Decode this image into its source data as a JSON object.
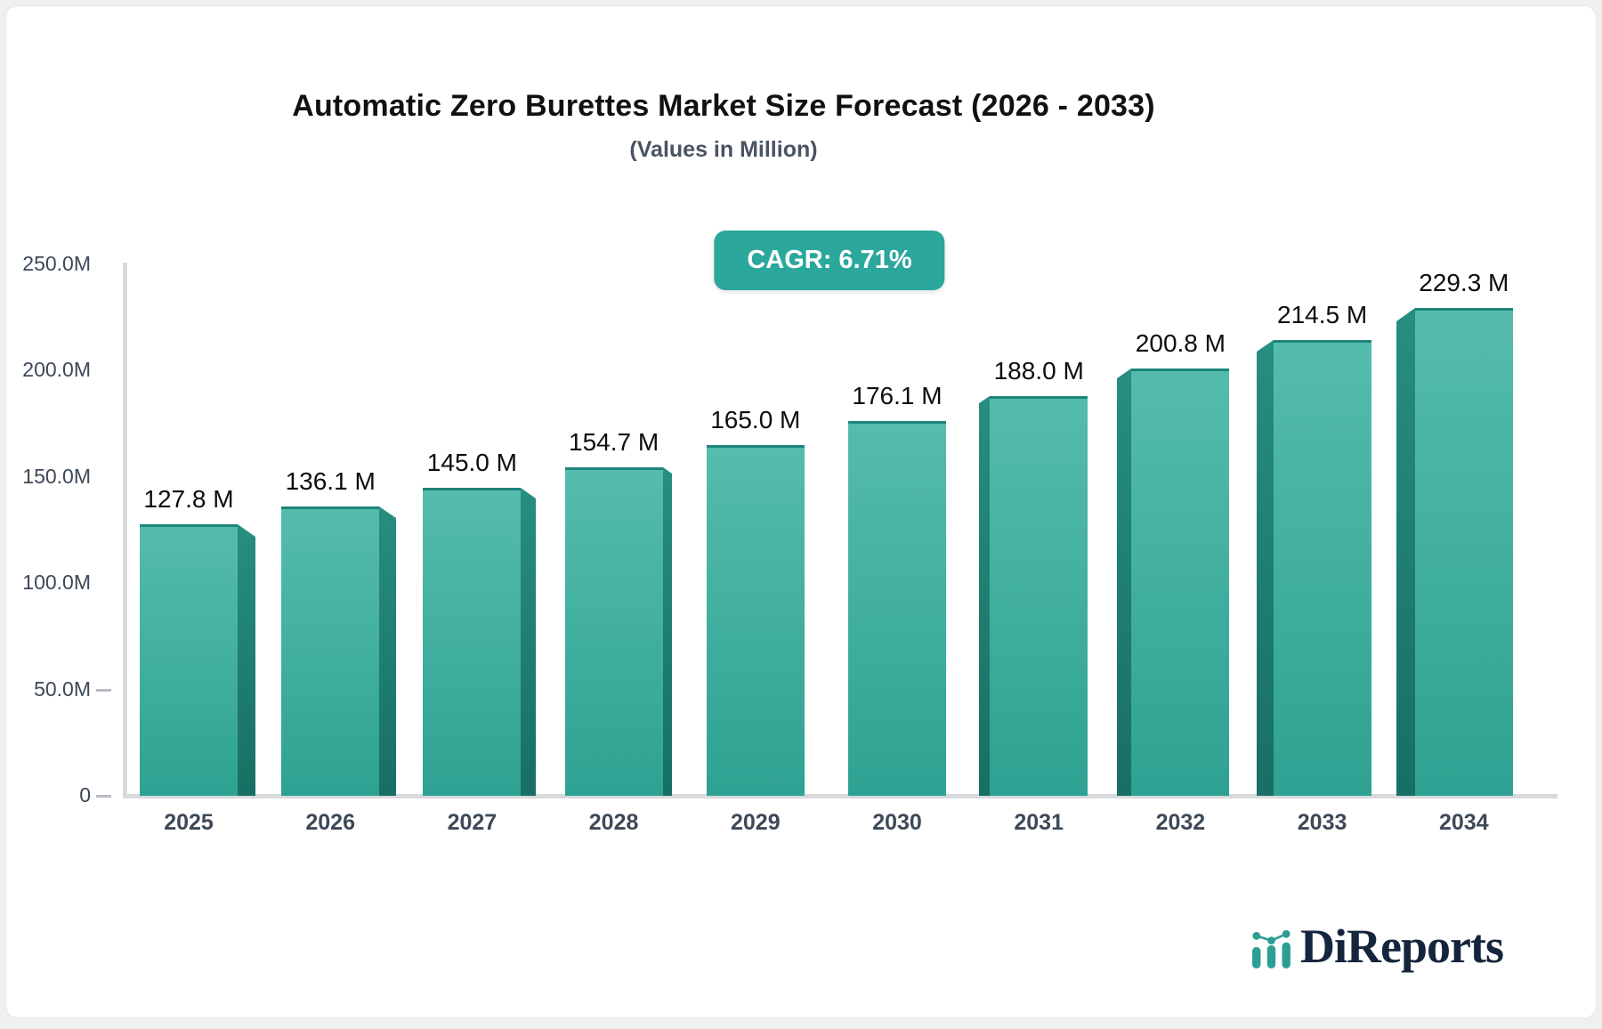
{
  "page": {
    "title": "Automatic Zero Burettes Market Size Forecast (2026 - 2033)",
    "subtitle": "(Values in Million)",
    "cagr_badge": "CAGR: 6.71%"
  },
  "chart_data": {
    "type": "bar",
    "title": "Automatic Zero Burettes Market Size Forecast (2026 - 2033)",
    "subtitle": "(Values in Million)",
    "annotation": "CAGR: 6.71%",
    "categories": [
      "2025",
      "2026",
      "2027",
      "2028",
      "2029",
      "2030",
      "2031",
      "2032",
      "2033",
      "2034"
    ],
    "values": [
      127.8,
      136.1,
      145.0,
      154.7,
      165.0,
      176.1,
      188.0,
      200.8,
      214.5,
      229.3
    ],
    "value_labels": [
      "127.8 M",
      "136.1 M",
      "145.0 M",
      "154.7 M",
      "165.0 M",
      "176.1 M",
      "188.0 M",
      "200.8 M",
      "214.5 M",
      "229.3 M"
    ],
    "unit": "Million",
    "ylim": [
      0,
      250
    ],
    "y_ticks": [
      {
        "label": "250.0M",
        "value": 250,
        "dash": false
      },
      {
        "label": "200.0M",
        "value": 200,
        "dash": false
      },
      {
        "label": "150.0M",
        "value": 150,
        "dash": false
      },
      {
        "label": "100.0M",
        "value": 100,
        "dash": false
      },
      {
        "label": "50.0M",
        "value": 50,
        "dash": true
      },
      {
        "label": "0",
        "value": 0,
        "dash": true
      }
    ],
    "grid": false,
    "legend": "none",
    "colors": {
      "bar_top": "#55bcac",
      "bar_bottom": "#2ea292",
      "bar_edge": "#1d857a",
      "side_top": "#268e80",
      "side_bottom": "#186f63",
      "accent": "#2ba79b",
      "axis_line": "#d7d9dd",
      "tick_label": "#3d4957",
      "value_label": "#0c0d0e"
    }
  },
  "logo": {
    "name": "DiReports",
    "icon": "bar-chart-logo-icon",
    "icon_color": "#2c9e93",
    "text_color": "#16253e"
  }
}
